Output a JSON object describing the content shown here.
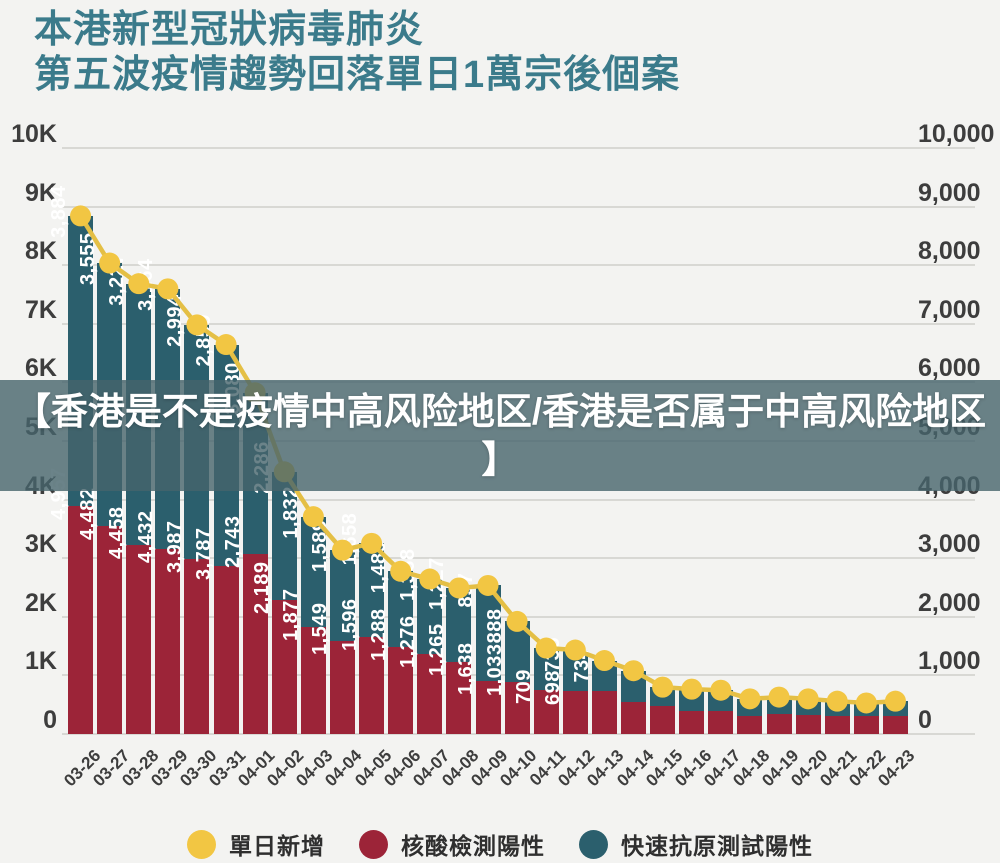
{
  "title": {
    "line1": "本港新型冠狀病毒肺炎",
    "line2": "第五波疫情趨勢回落單日1萬宗後個案"
  },
  "overlay_banner": {
    "line1": "【香港是不是疫情中高风险地区/香港是否属于中高风险地区",
    "line2": "】"
  },
  "legend": [
    {
      "name": "daily-new",
      "label": "單日新增",
      "color": "#f2c643"
    },
    {
      "name": "pcr-positive",
      "label": "核酸檢測陽性",
      "color": "#9c2438"
    },
    {
      "name": "rat-positive",
      "label": "快速抗原測試陽性",
      "color": "#2b5f6d"
    }
  ],
  "colors": {
    "background": "#f3f3f1",
    "title_text": "#3b7b8b",
    "bar_pcr": "#9c2438",
    "bar_rat": "#2b5f6d",
    "line": "#e4bf45",
    "dot": "#f2c643",
    "axis_text": "#3d3d3d",
    "gridline": "#d8d8d4",
    "banner_bg": "rgba(70,100,108,0.80)",
    "banner_text": "#ffffff",
    "bar_value_text": "#ffffff"
  },
  "chart_data": {
    "type": "bar",
    "subtype": "stacked-bars-with-total-line",
    "categories": [
      "03-26",
      "03-27",
      "03-28",
      "03-29",
      "03-30",
      "03-31",
      "04-01",
      "04-02",
      "04-03",
      "04-04",
      "04-05",
      "04-06",
      "04-07",
      "04-08",
      "04-09",
      "04-10",
      "04-11",
      "04-12",
      "04-13",
      "04-14",
      "04-15",
      "04-16",
      "04-17",
      "04-18",
      "04-19",
      "04-20",
      "04-21",
      "04-22",
      "04-23"
    ],
    "series": [
      {
        "name": "核酸檢測陽性",
        "color": "#9c2438",
        "values": [
          3884,
          3555,
          3227,
          3164,
          2994,
          2859,
          3080,
          2286,
          1832,
          1589,
          1658,
          1489,
          1368,
          1227,
          897,
          888,
          758,
          735,
          734,
          550,
          470,
          400,
          400,
          310,
          340,
          330,
          310,
          300,
          310
        ],
        "labels": [
          "3,884",
          "3,555",
          "3,227",
          "3,164",
          "2,994",
          "2,859",
          "3,080",
          "2,286",
          "1,832",
          "1,589",
          "1,658",
          "1,489",
          "1,368",
          "1,227",
          "897",
          "888",
          null,
          "735",
          "734",
          null,
          null,
          null,
          null,
          null,
          null,
          null,
          null,
          null,
          null
        ]
      },
      {
        "name": "快速抗原測試陽性",
        "color": "#2b5f6d",
        "values": [
          4957,
          4482,
          4458,
          4432,
          3987,
          3787,
          2743,
          2189,
          1877,
          1549,
          1596,
          1288,
          1276,
          1265,
          1638,
          1033,
          709,
          698,
          520,
          530,
          330,
          366,
          347,
          290,
          290,
          270,
          250,
          230,
          250
        ],
        "labels": [
          "4,957",
          "4,482",
          "4,458",
          "4,432",
          "3,987",
          "3,787",
          "2,743",
          "2,189",
          "1,877",
          "1,549",
          "1,596",
          "1,288",
          "1,276",
          "1,265",
          "1,638",
          "1,033",
          "709",
          "698",
          null,
          null,
          null,
          null,
          null,
          null,
          null,
          null,
          null,
          null,
          null
        ]
      }
    ],
    "line_series": {
      "name": "單日新增",
      "color": "#f2c643",
      "values": [
        8841,
        8037,
        7685,
        7596,
        6981,
        6646,
        5823,
        4475,
        3709,
        3138,
        3254,
        2777,
        2644,
        2492,
        2535,
        1921,
        1467,
        1433,
        1254,
        1080,
        800,
        766,
        747,
        600,
        630,
        600,
        560,
        530,
        560
      ]
    },
    "y_axis": {
      "min": 0,
      "max": 10000,
      "ticks": [
        {
          "value": 10000,
          "left": "10K",
          "right": "10,000"
        },
        {
          "value": 9000,
          "left": "9K",
          "right": "9,000"
        },
        {
          "value": 8000,
          "left": "8K",
          "right": "8,000"
        },
        {
          "value": 7000,
          "left": "7K",
          "right": "7,000"
        },
        {
          "value": 6000,
          "left": "6K",
          "right": "6,000"
        },
        {
          "value": 5000,
          "left": "5K",
          "right": "5,000"
        },
        {
          "value": 4000,
          "left": "4K",
          "right": "4,000"
        },
        {
          "value": 3000,
          "left": "3K",
          "right": "3,000"
        },
        {
          "value": 2000,
          "left": "2K",
          "right": "2,000"
        },
        {
          "value": 1000,
          "left": "1K",
          "right": "1,000"
        },
        {
          "value": 0,
          "left": "0",
          "right": "0"
        }
      ],
      "grid": true
    },
    "legend_position": "bottom"
  }
}
